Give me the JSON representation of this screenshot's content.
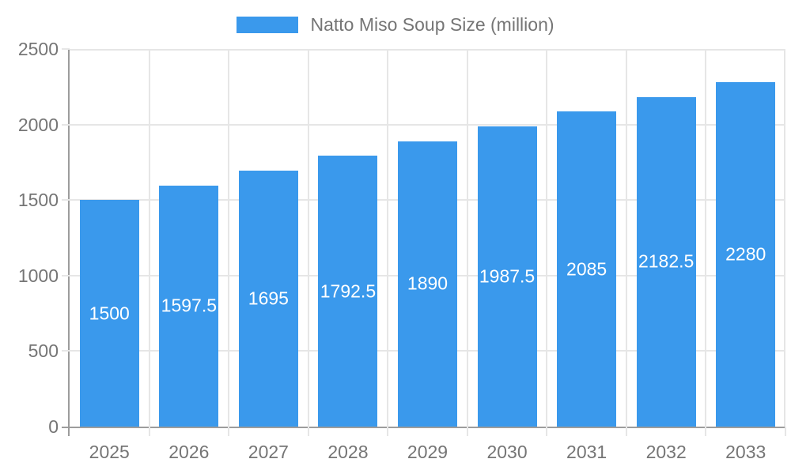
{
  "legend": {
    "label": "Natto Miso Soup Size (million)"
  },
  "colors": {
    "bar": "#3A99EC",
    "grid": "#E6E6E6",
    "axis": "#9C9C9C",
    "axis_text": "#757575",
    "bar_label_text": "#FFFFFF",
    "background": "#FFFFFF"
  },
  "chart_data": {
    "type": "bar",
    "title": "",
    "series_name": "Natto Miso Soup Size (million)",
    "categories": [
      "2025",
      "2026",
      "2027",
      "2028",
      "2029",
      "2030",
      "2031",
      "2032",
      "2033"
    ],
    "values": [
      1500,
      1597.5,
      1695,
      1792.5,
      1890,
      1987.5,
      2085,
      2182.5,
      2280
    ],
    "value_labels": [
      "1500",
      "1597.5",
      "1695",
      "1792.5",
      "1890",
      "1987.5",
      "2085",
      "2182.5",
      "2280"
    ],
    "xlabel": "",
    "ylabel": "",
    "ylim": [
      0,
      2500
    ],
    "yticks": [
      0,
      500,
      1000,
      1500,
      2000,
      2500
    ],
    "grid": true,
    "legend_position": "top",
    "bar_label_position": "center"
  }
}
